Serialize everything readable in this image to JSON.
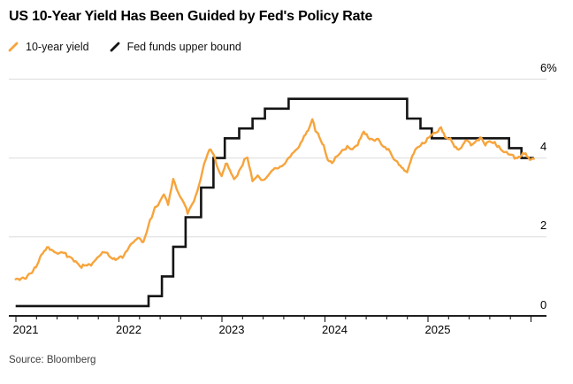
{
  "title": "US 10-Year Yield Has Been Guided by Fed's Policy Rate",
  "source": "Source: Bloomberg",
  "legend": [
    {
      "label": "10-year yield",
      "color": "#F7A43C",
      "icon": "slash-icon"
    },
    {
      "label": "Fed funds upper bound",
      "color": "#141414",
      "icon": "slash-icon"
    }
  ],
  "colors": {
    "background": "#FFFFFF",
    "yield_line": "#F7A43C",
    "fed_line": "#141414",
    "gridline": "#DCDCDC",
    "axis": "#000000",
    "source_text": "#3D3D3D"
  },
  "chart_data": {
    "type": "line",
    "title": "US 10-Year Yield Has Been Guided by Fed's Policy Rate",
    "xlabel": "",
    "ylabel": "",
    "x_unit": "decimal_year",
    "y_unit": "percent",
    "x_range": [
      2020.92,
      2025.95
    ],
    "y_range": [
      0,
      6
    ],
    "grid": "horizontal",
    "legend_position": "top-left",
    "x_axis": {
      "tick_labels": [
        "2021",
        "2022",
        "2023",
        "2024",
        "2025"
      ],
      "tick_values": [
        2021,
        2022,
        2023,
        2024,
        2025
      ],
      "minor_ticks_per_year": 5
    },
    "y_axis": {
      "ticks": [
        {
          "value": 6,
          "label": "6%"
        },
        {
          "value": 4,
          "label": "4"
        },
        {
          "value": 2,
          "label": "2"
        },
        {
          "value": 0,
          "label": "0"
        }
      ]
    },
    "series": [
      {
        "name": "10-year yield",
        "style": "line",
        "color": "#F7A43C",
        "points": [
          [
            2020.92,
            0.92
          ],
          [
            2020.96,
            0.94
          ],
          [
            2021.02,
            0.96
          ],
          [
            2021.05,
            1.05
          ],
          [
            2021.09,
            1.14
          ],
          [
            2021.13,
            1.3
          ],
          [
            2021.17,
            1.55
          ],
          [
            2021.21,
            1.68
          ],
          [
            2021.24,
            1.74
          ],
          [
            2021.28,
            1.64
          ],
          [
            2021.33,
            1.58
          ],
          [
            2021.38,
            1.62
          ],
          [
            2021.42,
            1.52
          ],
          [
            2021.47,
            1.45
          ],
          [
            2021.52,
            1.32
          ],
          [
            2021.56,
            1.24
          ],
          [
            2021.6,
            1.3
          ],
          [
            2021.64,
            1.28
          ],
          [
            2021.68,
            1.37
          ],
          [
            2021.73,
            1.52
          ],
          [
            2021.78,
            1.63
          ],
          [
            2021.81,
            1.58
          ],
          [
            2021.85,
            1.46
          ],
          [
            2021.89,
            1.43
          ],
          [
            2021.93,
            1.48
          ],
          [
            2021.97,
            1.52
          ],
          [
            2022.02,
            1.75
          ],
          [
            2022.08,
            1.92
          ],
          [
            2022.12,
            1.98
          ],
          [
            2022.16,
            1.85
          ],
          [
            2022.21,
            2.3
          ],
          [
            2022.27,
            2.72
          ],
          [
            2022.32,
            2.88
          ],
          [
            2022.36,
            3.1
          ],
          [
            2022.4,
            2.82
          ],
          [
            2022.45,
            3.47
          ],
          [
            2022.5,
            3.1
          ],
          [
            2022.55,
            2.88
          ],
          [
            2022.59,
            2.62
          ],
          [
            2022.65,
            2.9
          ],
          [
            2022.7,
            3.3
          ],
          [
            2022.75,
            3.85
          ],
          [
            2022.8,
            4.22
          ],
          [
            2022.84,
            4.12
          ],
          [
            2022.87,
            3.82
          ],
          [
            2022.92,
            3.52
          ],
          [
            2022.96,
            3.88
          ],
          [
            2023.0,
            3.7
          ],
          [
            2023.04,
            3.45
          ],
          [
            2023.09,
            3.65
          ],
          [
            2023.14,
            3.95
          ],
          [
            2023.17,
            4.02
          ],
          [
            2023.22,
            3.42
          ],
          [
            2023.27,
            3.55
          ],
          [
            2023.32,
            3.42
          ],
          [
            2023.37,
            3.55
          ],
          [
            2023.42,
            3.72
          ],
          [
            2023.47,
            3.75
          ],
          [
            2023.52,
            3.82
          ],
          [
            2023.57,
            4.0
          ],
          [
            2023.62,
            4.15
          ],
          [
            2023.67,
            4.28
          ],
          [
            2023.72,
            4.55
          ],
          [
            2023.76,
            4.7
          ],
          [
            2023.8,
            4.98
          ],
          [
            2023.83,
            4.72
          ],
          [
            2023.87,
            4.52
          ],
          [
            2023.91,
            4.3
          ],
          [
            2023.95,
            3.95
          ],
          [
            2023.99,
            3.88
          ],
          [
            2024.04,
            4.05
          ],
          [
            2024.09,
            4.18
          ],
          [
            2024.14,
            4.28
          ],
          [
            2024.19,
            4.22
          ],
          [
            2024.24,
            4.35
          ],
          [
            2024.3,
            4.68
          ],
          [
            2024.34,
            4.52
          ],
          [
            2024.39,
            4.45
          ],
          [
            2024.44,
            4.48
          ],
          [
            2024.49,
            4.28
          ],
          [
            2024.54,
            4.22
          ],
          [
            2024.59,
            3.98
          ],
          [
            2024.64,
            3.85
          ],
          [
            2024.68,
            3.72
          ],
          [
            2024.72,
            3.64
          ],
          [
            2024.77,
            4.05
          ],
          [
            2024.81,
            4.25
          ],
          [
            2024.85,
            4.32
          ],
          [
            2024.9,
            4.42
          ],
          [
            2024.95,
            4.58
          ],
          [
            2025.02,
            4.68
          ],
          [
            2025.05,
            4.78
          ],
          [
            2025.09,
            4.52
          ],
          [
            2025.14,
            4.48
          ],
          [
            2025.18,
            4.3
          ],
          [
            2025.22,
            4.2
          ],
          [
            2025.26,
            4.32
          ],
          [
            2025.3,
            4.48
          ],
          [
            2025.34,
            4.32
          ],
          [
            2025.39,
            4.42
          ],
          [
            2025.43,
            4.52
          ],
          [
            2025.48,
            4.35
          ],
          [
            2025.52,
            4.42
          ],
          [
            2025.57,
            4.38
          ],
          [
            2025.61,
            4.28
          ],
          [
            2025.66,
            4.15
          ],
          [
            2025.7,
            4.12
          ],
          [
            2025.75,
            4.05
          ],
          [
            2025.79,
            3.98
          ],
          [
            2025.83,
            4.08
          ],
          [
            2025.87,
            4.12
          ],
          [
            2025.91,
            3.95
          ],
          [
            2025.95,
            4.0
          ]
        ]
      },
      {
        "name": "Fed funds upper bound",
        "style": "step",
        "color": "#141414",
        "points": [
          [
            2020.92,
            0.25
          ],
          [
            2022.21,
            0.5
          ],
          [
            2022.34,
            1.0
          ],
          [
            2022.45,
            1.75
          ],
          [
            2022.57,
            2.5
          ],
          [
            2022.72,
            3.25
          ],
          [
            2022.84,
            4.0
          ],
          [
            2022.95,
            4.5
          ],
          [
            2023.09,
            4.75
          ],
          [
            2023.22,
            5.0
          ],
          [
            2023.34,
            5.25
          ],
          [
            2023.57,
            5.5
          ],
          [
            2024.72,
            5.0
          ],
          [
            2024.85,
            4.75
          ],
          [
            2024.96,
            4.5
          ],
          [
            2025.71,
            4.25
          ],
          [
            2025.83,
            4.0
          ]
        ],
        "end_x": 2025.95
      }
    ]
  }
}
